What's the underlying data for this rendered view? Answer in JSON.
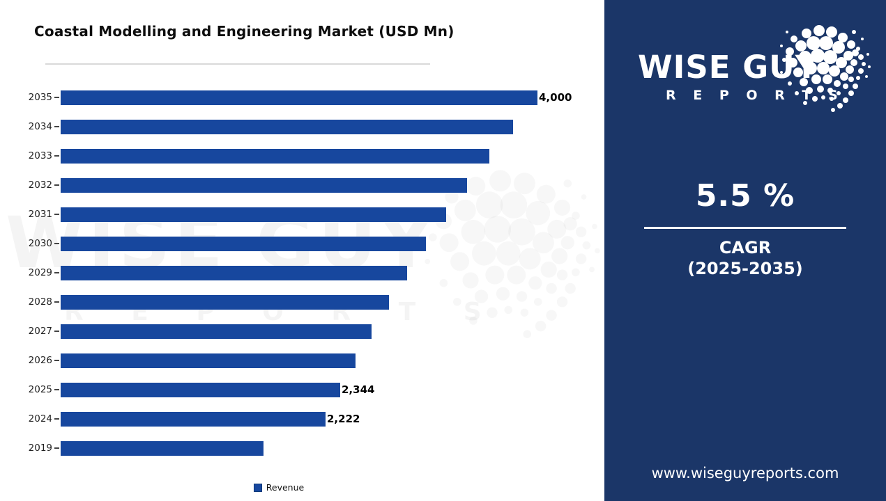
{
  "chart_data": {
    "type": "bar",
    "orientation": "horizontal",
    "title": "Coastal Modelling and Engineering Market (USD Mn)",
    "categories": [
      "2035",
      "2034",
      "2033",
      "2032",
      "2031",
      "2030",
      "2029",
      "2028",
      "2027",
      "2026",
      "2025",
      "2024",
      "2019"
    ],
    "values": [
      4000,
      3795,
      3597,
      3410,
      3232,
      3063,
      2904,
      2752,
      2609,
      2473,
      2344,
      2222,
      1700
    ],
    "data_labels": [
      "4,000",
      "",
      "",
      "",
      "",
      "",
      "",
      "",
      "",
      "",
      "2,344",
      "2,222",
      ""
    ],
    "series_name": "Revenue",
    "xlabel": "",
    "ylabel": "",
    "xlim": [
      0,
      4000
    ],
    "grid": false,
    "legend_position": "bottom",
    "bar_color": "#17479E"
  },
  "panel": {
    "bg_color": "#1B3668",
    "logo_line1": "WISE GUY",
    "logo_line2": "R E P O R T S",
    "cagr_value": "5.5 %",
    "cagr_line1": "CAGR",
    "cagr_line2": "(2025-2035)",
    "website": "www.wiseguyreports.com"
  },
  "watermark": {
    "line1": "WISE GUY",
    "line2": "R E P O R T S"
  }
}
